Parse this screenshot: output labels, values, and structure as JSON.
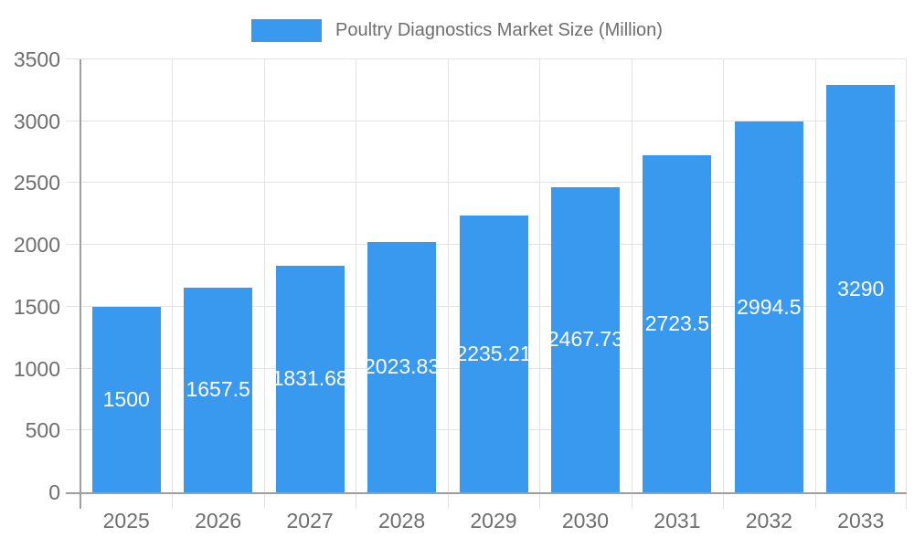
{
  "legend": {
    "label": "Poultry Diagnostics Market Size (Million)"
  },
  "colors": {
    "bar": "#3999ee",
    "axis_text": "#6e6e6e",
    "grid": "#e3e3e3",
    "axis_line": "#9e9e9e",
    "value_label": "#ffffff",
    "background": "#ffffff"
  },
  "chart_data": {
    "type": "bar",
    "title": "Poultry Diagnostics Market Size (Million)",
    "categories": [
      "2025",
      "2026",
      "2027",
      "2028",
      "2029",
      "2030",
      "2031",
      "2032",
      "2033"
    ],
    "values": [
      1500,
      1657.5,
      1831.68,
      2023.83,
      2235.21,
      2467.73,
      2723.5,
      2994.5,
      3290
    ],
    "value_labels": [
      "1500",
      "1657.5",
      "1831.68",
      "2023.83",
      "2235.21",
      "2467.73",
      "2723.5",
      "2994.5",
      "3290"
    ],
    "xlabel": "",
    "ylabel": "",
    "ylim": [
      0,
      3500
    ],
    "yticks": [
      0,
      500,
      1000,
      1500,
      2000,
      2500,
      3000,
      3500
    ],
    "ytick_labels": [
      "0",
      "500",
      "1000",
      "1500",
      "2000",
      "2500",
      "3000",
      "3500"
    ],
    "grid": true,
    "legend_position": "top",
    "value_labels_position": "center-inside",
    "bar_color": "#3999ee"
  }
}
